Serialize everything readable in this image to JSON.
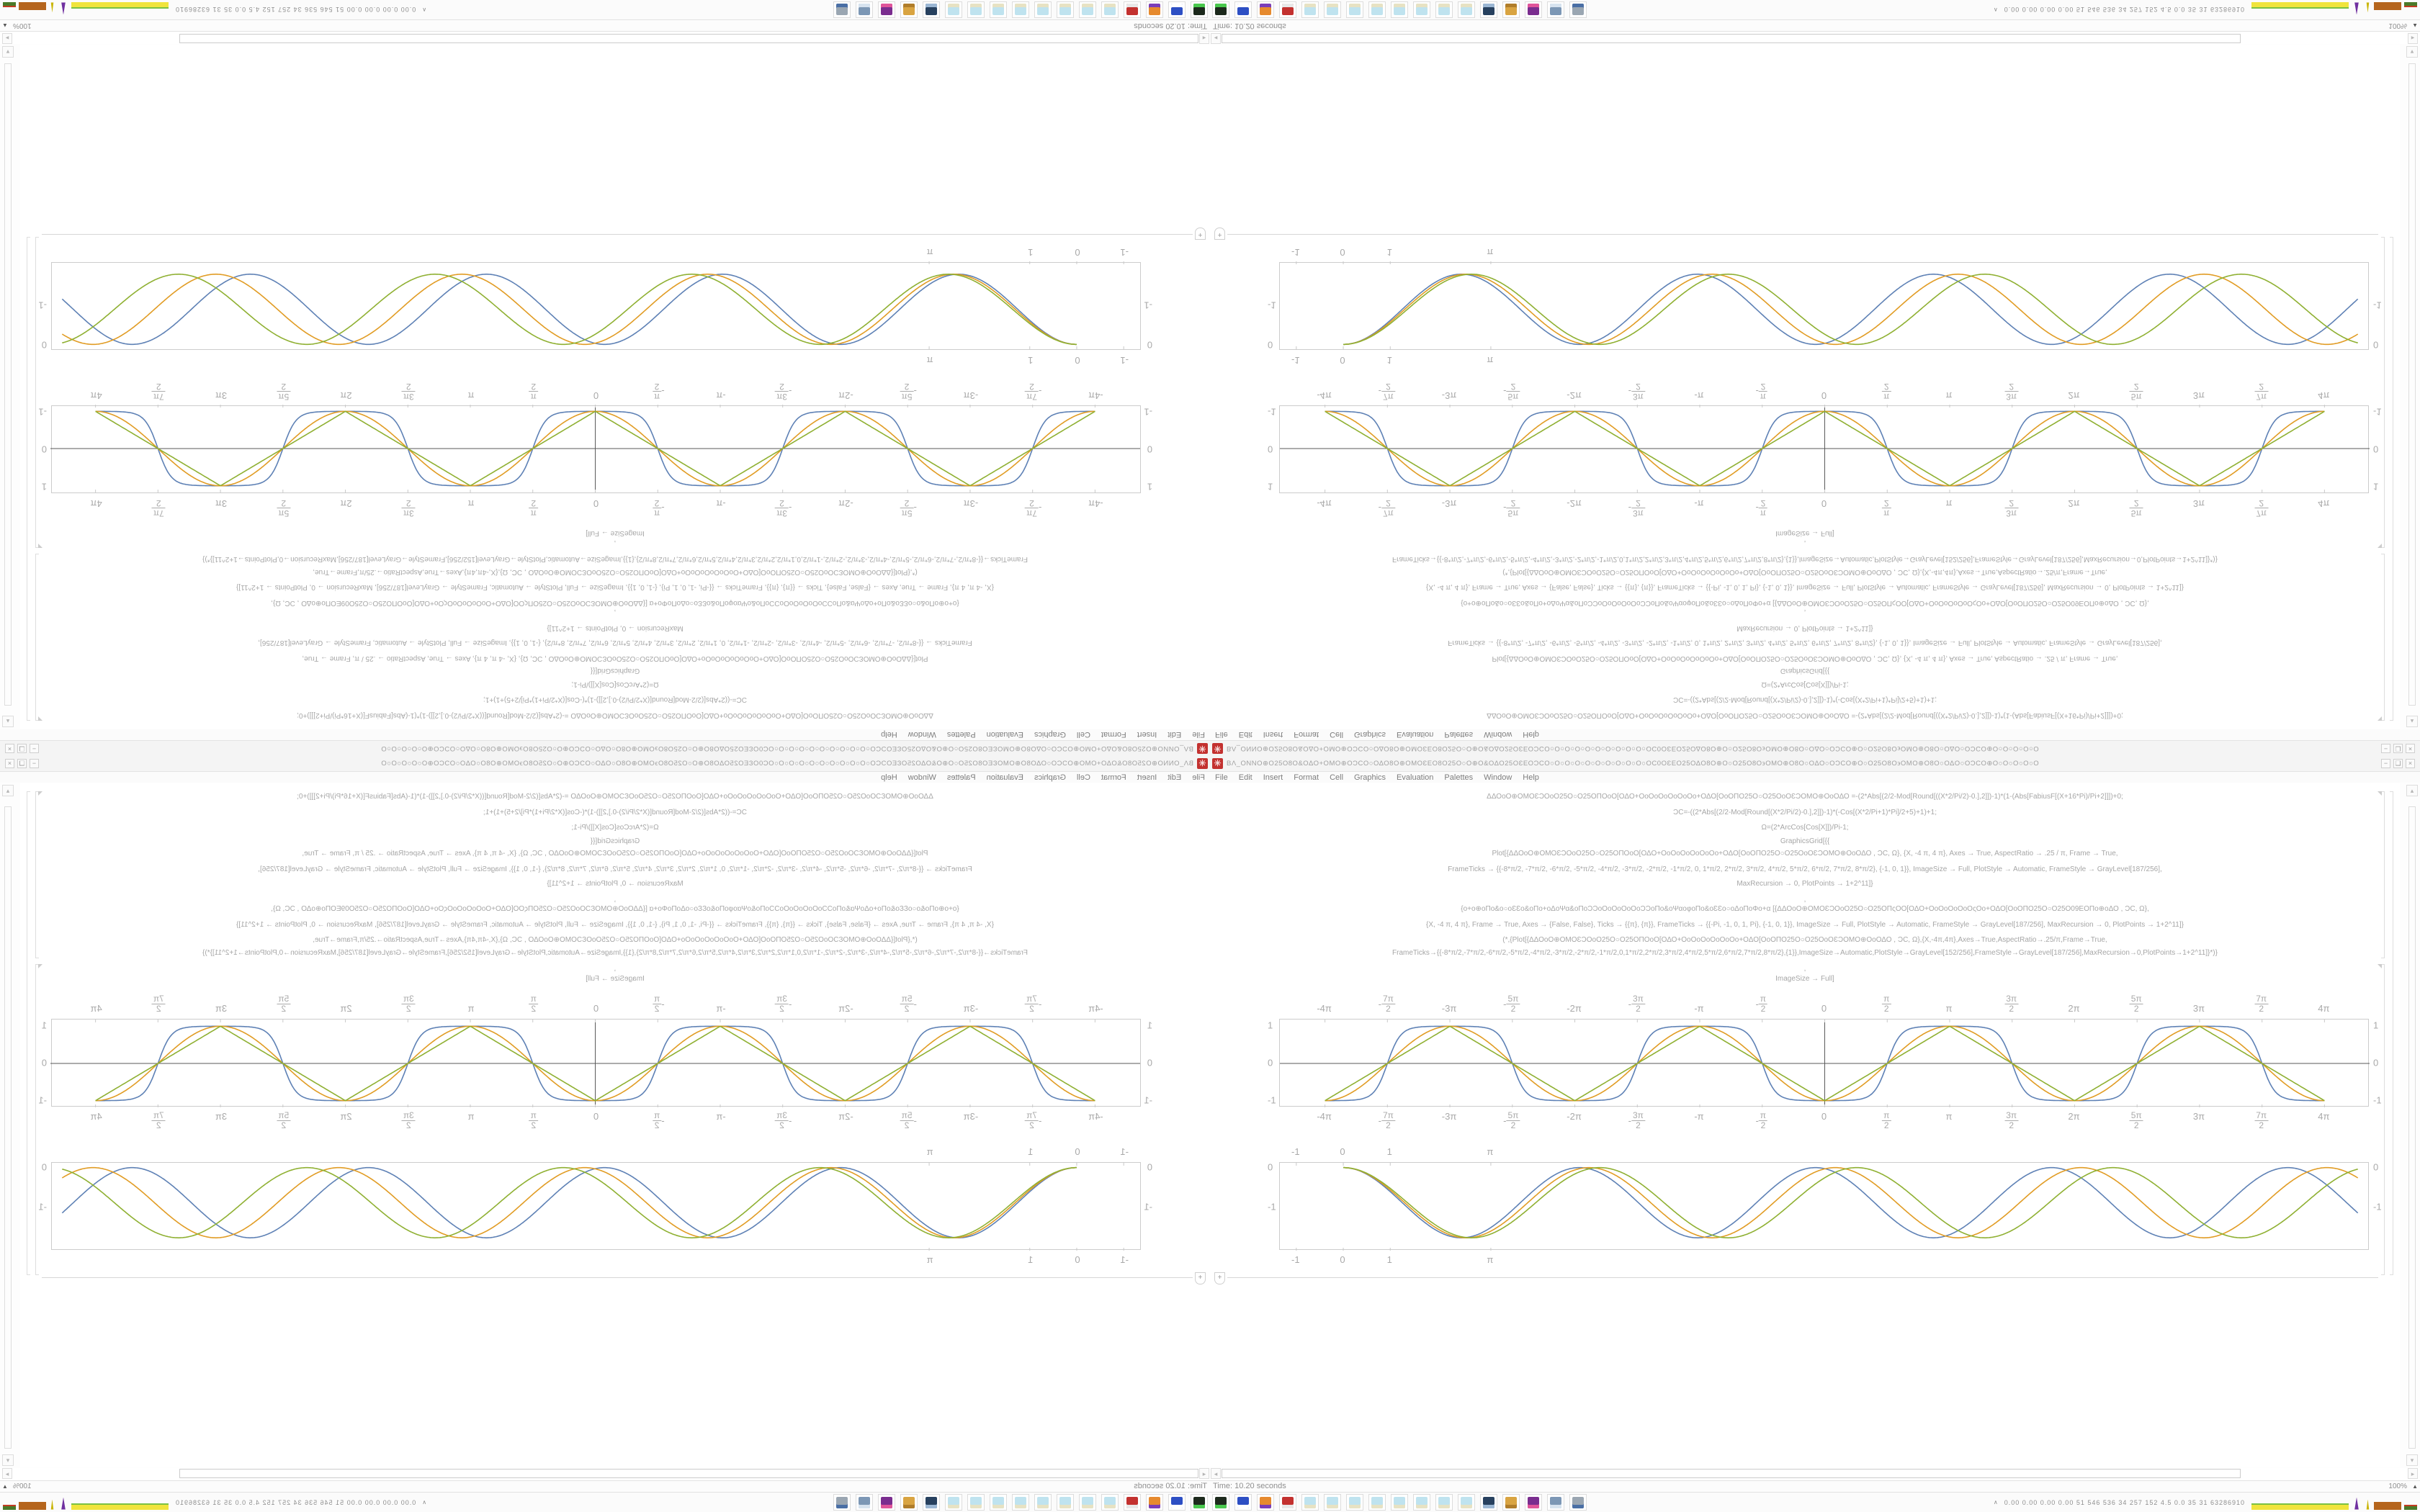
{
  "window": {
    "title": "ΒΛ_ΟΝΝΟ⊕Ο25Ο8Ο&ΟΔΟ+ΟΜΟ⊕ΟƆCΟ○ΟΔΟ8Ο⊕ΟΜΟƐΕΟ8Ο25Ο○Ο⊕Ο&ΟΔΟ25ΟƐΕΟƆCΟ○Ο○Ο○Ο○Ο○Ο○Ο○Ο○Ο○Ο○ΟC0ΟƐΕΟ25ΟΔΟ8Ο⊕Ο○Ο25Ο8Ο϶ΟΜΟ⊕Ο8Ο○ΟΔΟ○ΟƆCΟ⊕Ο○Ο25Ο8Ο϶ΟΜΟ⊕Ο8Ο○ΟΔΟ○ΟƆCΟ⊕Ο○Ο○Ο○Ο○Ο",
    "menu": [
      "File",
      "Edit",
      "Insert",
      "Format",
      "Cell",
      "Graphics",
      "Evaluation",
      "Palettes",
      "Window",
      "Help"
    ],
    "buttons": {
      "minimize": "−",
      "restore": "❑",
      "close": "×"
    },
    "status_left": "Time: 10.20 seconds",
    "zoom_level": "100%",
    "grip": "▲",
    "scroll_glyphs": {
      "up": "▴",
      "down": "▾",
      "left": "◂",
      "right": "▸"
    }
  },
  "code_lines": [
    "ΔΔΟοΟ⊕ΟΜΟƐƆΟοΟ25Ο○Ο25ΟΠΟοΟ[ΟΔΟ+ΟοΟοΟοΟοΟοΟο+ΟΔΟ[ΟοΟΠΟ25Ο○Ο25ΟοΟƐƆΟΜΟ⊕ΟοΟΔΟ   =-(2*Abs[(2/2-Mod[Round[((X*2/Pi/2)-0.],2]])-1)*(1-(Abs[FabiusF[(X+16*Pi)/Pi+2]]])+0;",
    "ƆC=-((2*Abs[(2/2-Mod[Round[(X*2/Pi/2)-0.],2]])-1)*(-Cos[(X*2/Pi+1)*Pi]/2+5)+1)+1;",
    "Ω=(2*ArcCos[Cos[X]])/Pi-1;",
    "GraphicsGrid[{{",
    "Plot[{ΔΔΟοΟ⊕ΟΜΟƐƆΟοΟ25Ο○Ο25ΟΠΟοΟ[ΟΔΟ+ΟοΟοΟοΟοΟοΟο+ΟΔΟ[ΟοΟΠΟ25Ο○Ο25ΟοΟƐƆΟΜΟ⊕ΟοΟΔΟ , ƆC, Ω}, {X, -4 π, 4 π}, Axes → True, AspectRatio → .25 / π, Frame → True,",
    "FrameTicks → {{-8*π/2, -7*π/2, -6*π/2, -5*π/2, -4*π/2, -3*π/2, -2*π/2, -1*π/2, 0, 1*π/2, 2*π/2, 3*π/2, 4*π/2, 5*π/2, 6*π/2, 7*π/2, 8*π/2}, {-1, 0, 1}}, ImageSize → Full, PlotStyle → Automatic, FrameStyle → GrayLevel[187/256],",
    "MaxRecursion → 0, PlotPoints → 1+2^11]}",
    ",",
    "{ο+ο⊕οΠο&ο○οƐƐο&οΠο+οΔοΨα&οΠοƆƆοΟοΟοΟοΟοƆƆοΠο&οΨαοφοΠο&οƐƐο○οΔοΠοΦο+α  [{ΔΔΟοΟ⊕ΟΜΟƐƆΟοΟ25Ο○Ο25ΟΠςΟΟ[ΟΔΟ+ΟοΟοΟοΟοΟςΟο+ΟΔΟ[ΟοΟΠΟ25Ο○Ο25Ο09ΕΟΠο⊕οΔΟ , ƆC, Ω},",
    "{X, -4 π, 4 π}, Frame → True, Axes → {False, False}, Ticks → {{π}, {π}}, FrameTicks → {{-Pi, -1, 0, 1, Pi}, {-1, 0, 1}}, ImageSize → Full, PlotStyle → Automatic, FrameStyle → GrayLevel[187/256], MaxRecursion → 0, PlotPoints → 1+2^11]}",
    "(*,{Plot[{ΔΔΟοΟ⊕ΟΜΟƐƆΟοΟ25Ο○Ο25ΟΠΟοΟ[ΟΔΟ+ΟοΟοΟοΟοΟοΟο+ΟΔΟ[ΟοΟΠΟ25Ο○Ο25ΟοΟƐƆΟΜΟ⊕ΟοΟΔΟ , ƆC, Ω},{X,-4π,4π},Axes→True,AspectRatio→.25/π,Frame→True,",
    "FrameTicks→{{-8*π/2,-7*π/2,-6*π/2,-5*π/2,-4*π/2,-3*π/2,-2*π/2,-1*π/2,0,1*π/2,2*π/2,3*π/2,4*π/2,5*π/2,6*π/2,7*π/2,8*π/2},{1}},ImageSize→Automatic,PlotStyle→GrayLevel[152/256],FrameStyle→GrayLevel[187/256],MaxRecursion→0,PlotPoints→1+2^11]}*)}",
    ",",
    "ImageSize → Full]"
  ],
  "chart_data": [
    {
      "type": "line",
      "title": "",
      "xlabel": "",
      "ylabel": "",
      "x_min": -13.7,
      "x_max": 13.7,
      "y_min": -1.18,
      "y_max": 1.18,
      "domain": [
        -12.566,
        12.566
      ],
      "x_tick_vals": [
        -12.566,
        -10.996,
        -9.425,
        -7.854,
        -6.283,
        -4.712,
        -3.142,
        -1.571,
        0,
        1.571,
        3.142,
        4.712,
        6.283,
        7.854,
        9.425,
        10.996,
        12.566
      ],
      "x_tick_labels": [
        "-4π",
        "-7π|2",
        "-3π",
        "-5π|2",
        "-2π",
        "-3π|2",
        "-π",
        "-π|2",
        "0",
        "π|2",
        "π",
        "3π|2",
        "2π",
        "5π|2",
        "3π",
        "7π|2",
        "4π"
      ],
      "y_tick_vals": [
        1,
        0,
        -1
      ],
      "y_tick_labels": [
        "1",
        "0",
        "-1"
      ],
      "axes": true,
      "grid": false,
      "legend": "none",
      "series": [
        {
          "name": "smoothed-square-wave",
          "color": "#5e81b5",
          "fn": "flatcos",
          "formula": "-(2 Abs[...Mod Round...]-1)(1-Abs[FabiusF[(X+16π)/π+2]])"
        },
        {
          "name": "shifted-cosine",
          "color": "#e19c24",
          "fn": "negcos",
          "formula": "ƆC = -Cos[x]"
        },
        {
          "name": "triangle-wave",
          "color": "#8fb032",
          "fn": "triangle",
          "formula": "Ω = 2 ArcCos[Cos[X]]/π - 1"
        }
      ]
    },
    {
      "type": "line",
      "title": "",
      "xlabel": "",
      "ylabel": "",
      "x_min": -1.35,
      "x_max": 21.85,
      "y_min": -2.07,
      "y_max": 0.12,
      "domain": [
        0,
        21.6
      ],
      "x_tick_vals": [
        -1,
        0,
        1,
        3.1416
      ],
      "x_tick_labels": [
        "-1",
        "0",
        "1",
        "π"
      ],
      "y_tick_vals": [
        0,
        -1
      ],
      "y_tick_labels": [
        "0",
        "-1"
      ],
      "axes": false,
      "grid": false,
      "legend": "none",
      "amp": 0.875,
      "series": [
        {
          "name": "chirp-blue",
          "color": "#5e81b5",
          "fn": "chirp",
          "w": 1.25
        },
        {
          "name": "chirp-orange",
          "color": "#e19c24",
          "fn": "chirp",
          "w": 1.2
        },
        {
          "name": "chirp-green",
          "color": "#8fb032",
          "fn": "chirp",
          "w": 1.15
        }
      ]
    }
  ],
  "taskbar": {
    "icons": [
      {
        "name": "terminal-green-icon",
        "bg": "#1d2a1d",
        "fg": "#49c84d"
      },
      {
        "name": "floppy-save-icon",
        "bg": "#2d4fc4",
        "fg": "#ffffff"
      },
      {
        "name": "firefox-icon",
        "bg": "#e68a2e",
        "fg": "#7a3db8"
      },
      {
        "name": "mathematica-icon",
        "bg": "#c3312f",
        "fg": "#e8e8e8"
      },
      {
        "name": "notepad-icon",
        "bg": "#bfe3ef",
        "fg": "#e7e2c3"
      },
      {
        "name": "notepad-icon",
        "bg": "#bfe3ef",
        "fg": "#e7e2c3"
      },
      {
        "name": "notepad-icon",
        "bg": "#bfe3ef",
        "fg": "#e7e2c3"
      },
      {
        "name": "notepad-icon",
        "bg": "#bfe3ef",
        "fg": "#e7e2c3"
      },
      {
        "name": "notepad-icon",
        "bg": "#bfe3ef",
        "fg": "#e7e2c3"
      },
      {
        "name": "notepad-icon",
        "bg": "#bfe3ef",
        "fg": "#e7e2c3"
      },
      {
        "name": "notepad-icon",
        "bg": "#bfe3ef",
        "fg": "#e7e2c3"
      },
      {
        "name": "notepad-icon",
        "bg": "#bfe3ef",
        "fg": "#e7e2c3"
      },
      {
        "name": "screenshot-monitor-icon",
        "bg": "#27415f",
        "fg": "#9bb7d4"
      },
      {
        "name": "folder-icon",
        "bg": "#d9a441",
        "fg": "#b07d2a"
      },
      {
        "name": "gimp-purple-icon",
        "bg": "#7a2d8f",
        "fg": "#e0559a"
      },
      {
        "name": "scroll-document-icon",
        "bg": "#7c97b5",
        "fg": "#d7e3ef"
      },
      {
        "name": "window-terminal-icon",
        "bg": "#9aa6b2",
        "fg": "#4a6fa5"
      }
    ],
    "tray": {
      "expand_glyph": "∧",
      "stats": "0.00 0.00 0.00 0.00  51  546  536  34  257  152  4.5  0.0  35  31  63286910"
    }
  }
}
